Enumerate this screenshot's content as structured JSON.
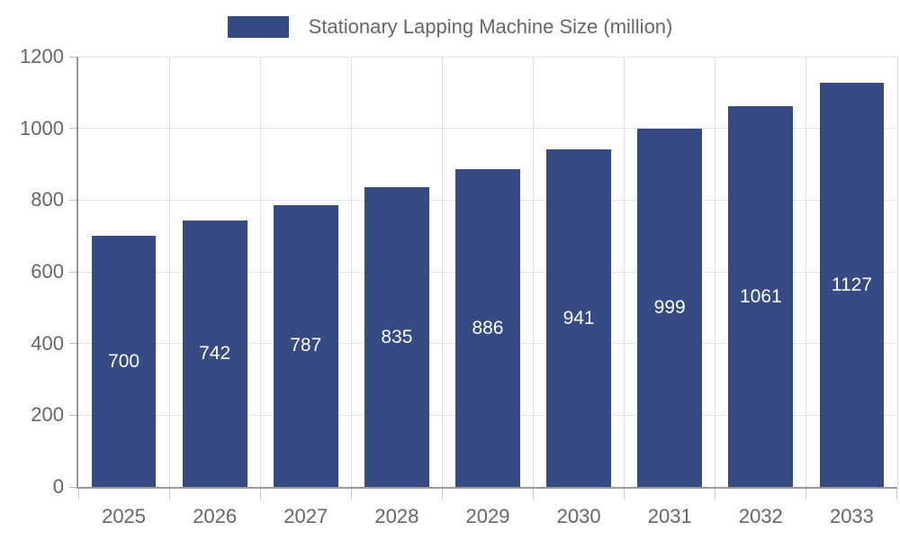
{
  "chart_data": {
    "type": "bar",
    "title": "Stationary Lapping Machine Size (million)",
    "categories": [
      "2025",
      "2026",
      "2027",
      "2028",
      "2029",
      "2030",
      "2031",
      "2032",
      "2033"
    ],
    "values": [
      700,
      742,
      787,
      835,
      886,
      941,
      999,
      1061,
      1127
    ],
    "xlabel": "",
    "ylabel": "",
    "ylim": [
      0,
      1200
    ],
    "yticks": [
      0,
      200,
      400,
      600,
      800,
      1000,
      1200
    ],
    "grid": true,
    "legend_position": "top-center",
    "colors": {
      "bar": "#364A84",
      "value_label": "#FFFFFF",
      "axis_text": "#666666",
      "axis_line": "#999999",
      "gridline": "#E2E2E2",
      "tick": "#CCCCCC",
      "background": "#FFFFFF"
    }
  }
}
